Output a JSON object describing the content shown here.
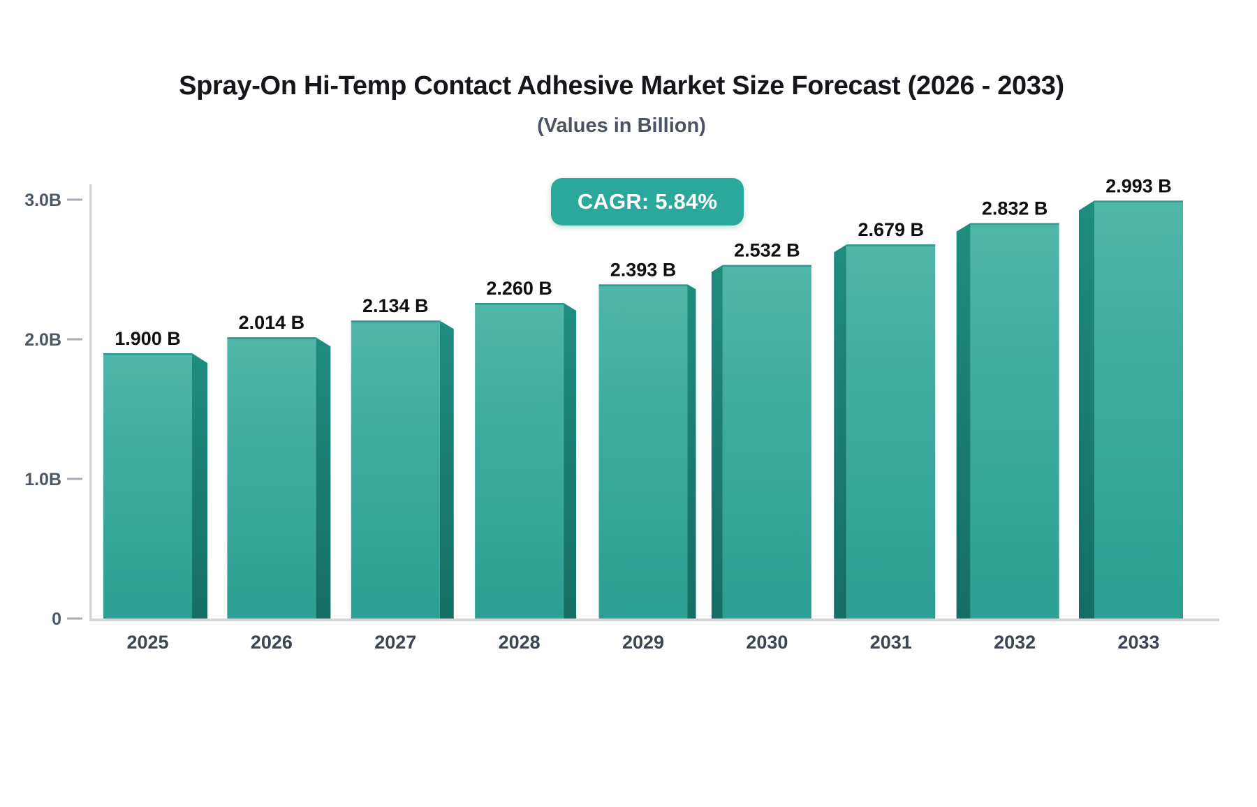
{
  "chart_data": {
    "type": "bar",
    "title": "Spray-On Hi-Temp Contact Adhesive Market Size Forecast (2026 - 2033)",
    "subtitle": "(Values in Billion)",
    "badge_label": "CAGR: 5.84%",
    "categories": [
      "2025",
      "2026",
      "2027",
      "2028",
      "2029",
      "2030",
      "2031",
      "2032",
      "2033"
    ],
    "values": [
      1.9,
      2.014,
      2.134,
      2.26,
      2.393,
      2.532,
      2.679,
      2.832,
      2.993
    ],
    "value_labels": [
      "1.900 B",
      "2.014 B",
      "2.134 B",
      "2.260 B",
      "2.393 B",
      "2.532 B",
      "2.679 B",
      "2.832 B",
      "2.993 B"
    ],
    "unit": "Billion",
    "xlabel": "",
    "ylabel": "",
    "ylim": [
      0,
      3.0
    ],
    "yticks": [
      {
        "label": "3.0B",
        "value": 3.0
      },
      {
        "label": "2.0B",
        "value": 2.0
      },
      {
        "label": "1.0B",
        "value": 1.0
      },
      {
        "label": "0",
        "value": 0.0
      }
    ],
    "grid": false,
    "legend": false,
    "colors": {
      "bar_front_top": "#50b6a8",
      "bar_front_mid": "#3dab9d",
      "bar_front_bottom": "#2b9f92",
      "bar_side_top": "#1f8c7f",
      "bar_side_bottom": "#146e64",
      "bar_top_edge": "#2b9a8d",
      "badge_bg": "#2aa89b",
      "badge_text": "#ffffff",
      "axis_line": "#d6d7db",
      "tick_dash": "#a7abb3",
      "tick_label": "#4e5765",
      "x_label": "#3c4554",
      "value_label": "#0c0e11",
      "title": "#14161b",
      "subtitle": "#4a5363"
    }
  }
}
